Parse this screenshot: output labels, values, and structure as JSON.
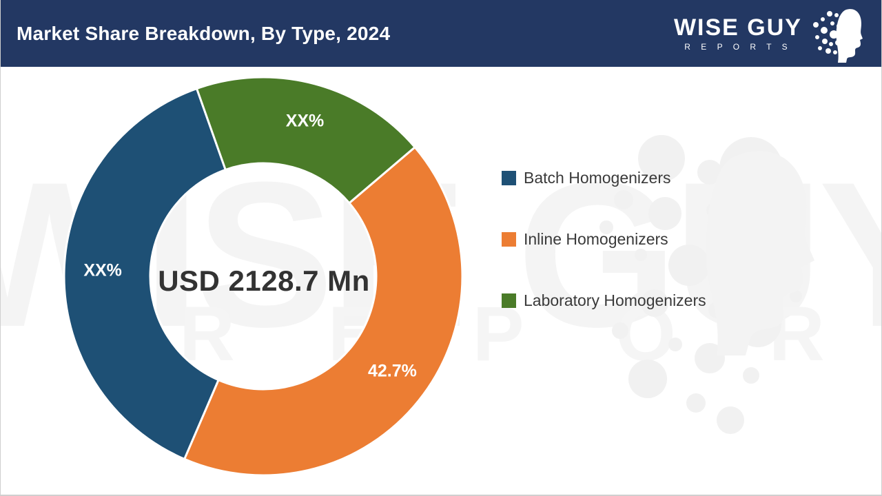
{
  "header": {
    "title": "Market Share Breakdown, By Type, 2024",
    "logo": {
      "line1": "WISE GUY",
      "line2": "R E P O R T S"
    }
  },
  "watermark": {
    "line1": "WISE GUY",
    "line2": "R E P O R T S"
  },
  "chart_data": {
    "type": "pie",
    "subtype": "donut",
    "title": "Market Share Breakdown, By Type, 2024",
    "center_label": "USD 2128.7 Mn",
    "units": "USD Mn",
    "total_value_mn": 2128.7,
    "legend_position": "right",
    "segments": [
      {
        "name": "Batch Homogenizers",
        "color": "#1E5075",
        "data_label": "XX%",
        "share_pct_estimated": 38.1,
        "start_deg": 203.3,
        "end_deg": 340.5
      },
      {
        "name": "Inline Homogenizers",
        "color": "#EC7D33",
        "data_label": "42.7%",
        "share_pct_estimated": 42.7,
        "start_deg": 49.6,
        "end_deg": 203.3
      },
      {
        "name": "Laboratory Homogenizers",
        "color": "#4A7B28",
        "data_label": "XX%",
        "share_pct_estimated": 19.2,
        "start_deg": -19.5,
        "end_deg": 49.6
      }
    ]
  },
  "colors": {
    "header_bg": "#233863",
    "page_bg": "#FFFFFF",
    "center_text": "#333333",
    "legend_text": "#3A3A3A",
    "watermark_text": "#F4F4F4",
    "border": "#CFCFCF"
  }
}
